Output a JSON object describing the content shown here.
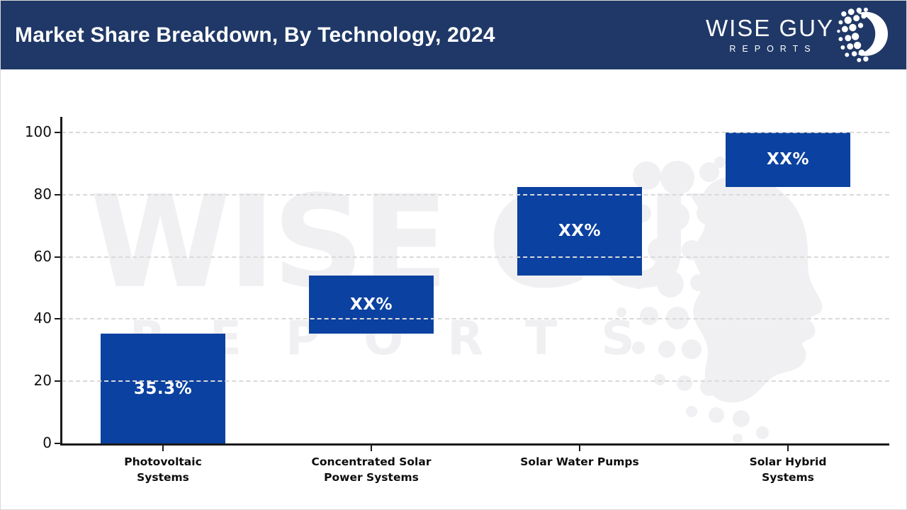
{
  "header": {
    "title": "Market Share Breakdown, By Technology, 2024",
    "logo": {
      "wordmark": "WISE GUY",
      "tagline": "REPORTS",
      "icon": "dotted-head-profile-icon"
    }
  },
  "watermark": {
    "wordmark": "WISE GUY",
    "tagline": "REPORTS",
    "icon": "dotted-head-profile-watermark",
    "color": "#f0f0f2"
  },
  "colors": {
    "header_bg": "#1f3867",
    "bar": "#0b41a0",
    "grid": "#d9d9d9",
    "axis": "#1a1a1a",
    "value_label_text": "#ffffff"
  },
  "chart_data": {
    "type": "bar",
    "variant": "waterfall",
    "title": "Market Share Breakdown, By Technology, 2024",
    "xlabel": "",
    "ylabel": "",
    "ylim": [
      0,
      105
    ],
    "y_ticks": [
      0,
      20,
      40,
      60,
      80,
      100
    ],
    "grid": {
      "axis": "y",
      "style": "dashed",
      "on": true
    },
    "legend": "none",
    "categories": [
      "Photovoltaic Systems",
      "Concentrated Solar Power Systems",
      "Solar Water Pumps",
      "Solar Hybrid Systems"
    ],
    "segments": [
      {
        "category_lines": [
          "Photovoltaic",
          "Systems"
        ],
        "start": 0,
        "end": 35.3,
        "value_label": "35.3%"
      },
      {
        "category_lines": [
          "Concentrated Solar",
          "Power Systems"
        ],
        "start": 35.3,
        "end": 54,
        "value_label": "XX%"
      },
      {
        "category_lines": [
          "Solar Water Pumps"
        ],
        "start": 54,
        "end": 82.5,
        "value_label": "XX%"
      },
      {
        "category_lines": [
          "Solar Hybrid",
          "Systems"
        ],
        "start": 82.5,
        "end": 100,
        "value_label": "XX%"
      }
    ]
  }
}
